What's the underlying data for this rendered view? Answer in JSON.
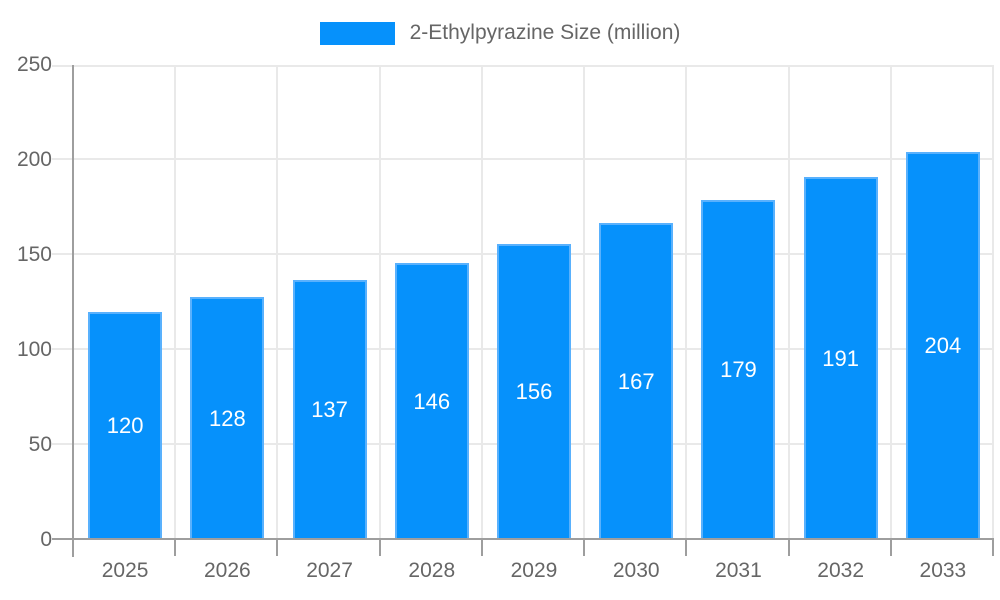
{
  "chart_data": {
    "type": "bar",
    "title": "",
    "legend": "2-Ethylpyrazine Size (million)",
    "legend_position": "top",
    "categories": [
      "2025",
      "2026",
      "2027",
      "2028",
      "2029",
      "2030",
      "2031",
      "2032",
      "2033"
    ],
    "values": [
      120,
      128,
      137,
      146,
      156,
      167,
      179,
      191,
      204
    ],
    "xlabel": "",
    "ylabel": "",
    "ylim": [
      0,
      250
    ],
    "yticks": [
      0,
      50,
      100,
      150,
      200,
      250
    ],
    "grid": true,
    "colors": {
      "bar_fill": "#0691fb",
      "bar_border": "#59b1fd",
      "value_label": "#ffffff",
      "axis_text": "#666666",
      "grid_line": "#e9e9e9",
      "axis_line": "#9e9e9e",
      "background": "#ffffff"
    }
  }
}
